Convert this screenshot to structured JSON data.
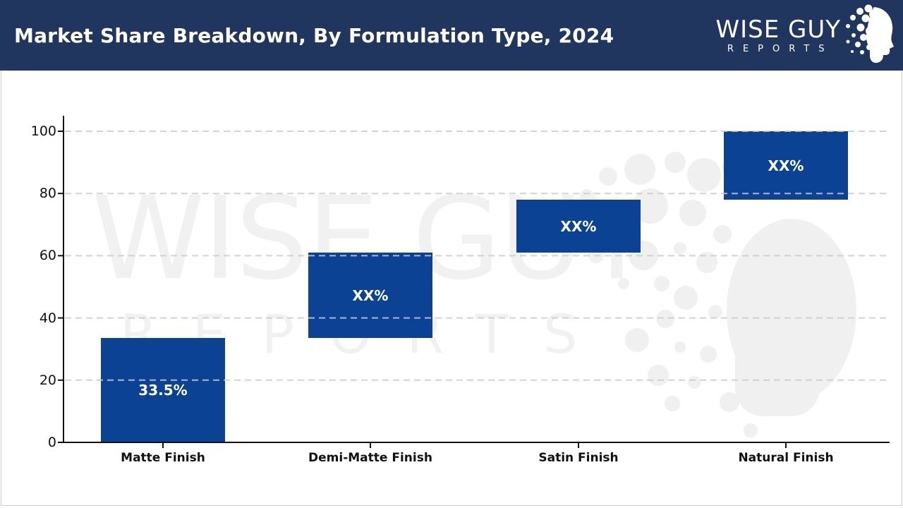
{
  "header": {
    "title": "Market Share Breakdown, By Formulation Type, 2024",
    "logo": {
      "name": "WISE GUY",
      "sub": "REPORTS"
    }
  },
  "watermark": {
    "name": "WISE GUY",
    "sub": "REPORTS"
  },
  "icons": {
    "logo_head": "dotted-head-profile-icon",
    "watermark_head": "dotted-head-profile-icon"
  },
  "chart_data": {
    "type": "bar",
    "variant": "floating-waterfall",
    "title": "Market Share Breakdown, By Formulation Type, 2024",
    "categories": [
      "Matte Finish",
      "Demi-Matte Finish",
      "Satin Finish",
      "Natural Finish"
    ],
    "segments": [
      {
        "category": "Matte Finish",
        "start": 0,
        "end": 33.5,
        "label": "33.5%"
      },
      {
        "category": "Demi-Matte Finish",
        "start": 33.5,
        "end": 61,
        "label": "XX%"
      },
      {
        "category": "Satin Finish",
        "start": 61,
        "end": 78,
        "label": "XX%"
      },
      {
        "category": "Natural Finish",
        "start": 78,
        "end": 100,
        "label": "XX%"
      }
    ],
    "xlabel": "",
    "ylabel": "",
    "yticks": [
      0,
      20,
      40,
      60,
      80,
      100
    ],
    "ylim": [
      0,
      105
    ],
    "grid": {
      "horizontal": true,
      "style": "dashed",
      "over_bars": true
    },
    "legend": "none",
    "bar_color": "#0c4294",
    "bar_label_color": "#ffffff",
    "axis_color": "#111111"
  },
  "colors": {
    "header_bg": "#21365f",
    "bar": "#0c4294",
    "grid": "#d4d4d4",
    "watermark": "#f1f1f1",
    "frame_border": "#cccccc"
  }
}
